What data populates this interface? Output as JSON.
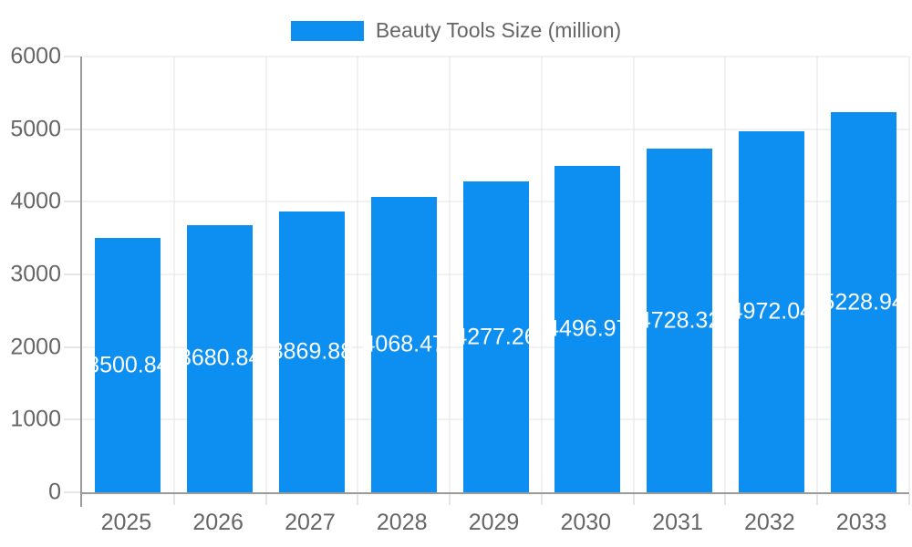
{
  "legend": {
    "label": "Beauty Tools Size (million)"
  },
  "colors": {
    "bar": "#0d8ff2",
    "axis": "#9a9a9a",
    "gridline": "#e3e3e3",
    "tick": "#cccccc",
    "label_text": "#666666",
    "bar_label": "#ffffff",
    "background": "#ffffff"
  },
  "chart_data": {
    "type": "bar",
    "title": "Beauty Tools Size (million)",
    "series_name": "Beauty Tools Size (million)",
    "categories": [
      "2025",
      "2026",
      "2027",
      "2028",
      "2029",
      "2030",
      "2031",
      "2032",
      "2033"
    ],
    "values": [
      3500.84,
      3680.84,
      3869.88,
      4068.47,
      4277.26,
      4496.97,
      4728.32,
      4972.04,
      5228.94
    ],
    "value_labels": [
      "3500.84",
      "3680.84",
      "3869.88",
      "4068.47",
      "4277.26",
      "4496.97",
      "4728.32",
      "4972.04",
      "5228.94"
    ],
    "xlabel": "",
    "ylabel": "",
    "ylim": [
      0,
      6000
    ],
    "yticks": [
      0,
      1000,
      2000,
      3000,
      4000,
      5000,
      6000
    ],
    "grid": "both",
    "legend_position": "top"
  }
}
